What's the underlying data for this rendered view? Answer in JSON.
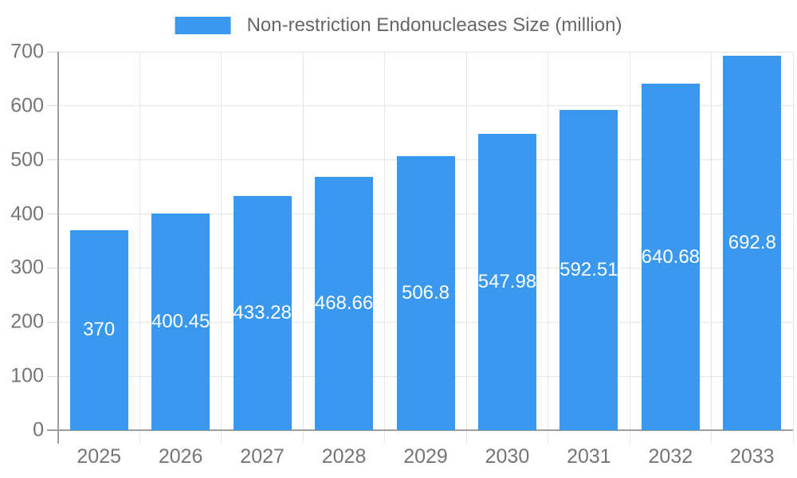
{
  "chart_data": {
    "type": "bar",
    "title": "Non-restriction Endonucleases Size (million)",
    "legend": {
      "label": "Non-restriction Endonucleases Size (million)",
      "position": "top"
    },
    "categories": [
      "2025",
      "2026",
      "2027",
      "2028",
      "2029",
      "2030",
      "2031",
      "2032",
      "2033"
    ],
    "series": [
      {
        "name": "Non-restriction Endonucleases Size (million)",
        "values": [
          370,
          400.45,
          433.28,
          468.66,
          506.8,
          547.98,
          592.51,
          640.68,
          692.8
        ],
        "value_labels": [
          "370",
          "400.45",
          "433.28",
          "468.66",
          "506.8",
          "547.98",
          "592.51",
          "640.68",
          "692.8"
        ]
      }
    ],
    "xlabel": "",
    "ylabel": "",
    "ylim": [
      0,
      700
    ],
    "yticks": [
      0,
      100,
      200,
      300,
      400,
      500,
      600,
      700
    ],
    "grid": true,
    "colors": {
      "bar": "#3A99EE",
      "grid": "#E6E6E6",
      "axis": "#9E9E9E",
      "axis_text": "#757575",
      "legend_text": "#666666",
      "bar_label_text": "#FFFFFF",
      "background": "#FFFFFF"
    }
  }
}
